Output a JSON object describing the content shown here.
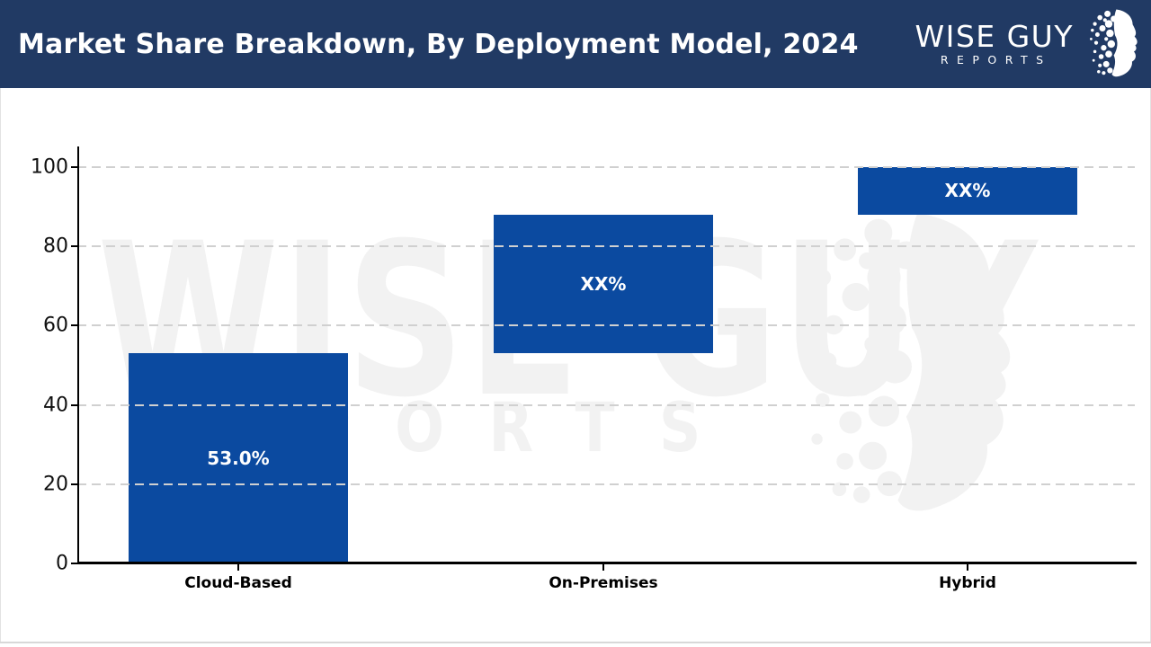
{
  "header": {
    "title": "Market Share Breakdown, By Deployment Model, 2024",
    "brand": {
      "name": "WISE GUY",
      "tagline": "REPORTS"
    }
  },
  "watermark": {
    "line1": "WISE GUY",
    "line2": "REPORTS"
  },
  "chart_data": {
    "type": "bar",
    "subtype": "stacked_waterfall_percent",
    "title": "Market Share Breakdown, By Deployment Model, 2024",
    "categories": [
      "Cloud-Based",
      "On-Premises",
      "Hybrid"
    ],
    "series": [
      {
        "name": "Cloud-Based",
        "start": 0,
        "end": 53,
        "label": "53.0%"
      },
      {
        "name": "On-Premises",
        "start": 53,
        "end": 88,
        "label": "XX%"
      },
      {
        "name": "Hybrid",
        "start": 88,
        "end": 100,
        "label": "XX%"
      }
    ],
    "xlabel": "",
    "ylabel": "",
    "ylim": [
      0,
      100
    ],
    "yticks": [
      0,
      20,
      40,
      60,
      80,
      100
    ],
    "grid": {
      "horizontal": true,
      "style": "dashed",
      "color": "#d0d0d0",
      "above_bars": true
    },
    "legend": "none",
    "bar_color": "#0b4aa0",
    "bar_label_color": "#ffffff",
    "axis_color": "#000000"
  },
  "colors": {
    "header_bg": "#213a64",
    "page_bg": "#ffffff",
    "watermark": "#f2f2f2"
  }
}
